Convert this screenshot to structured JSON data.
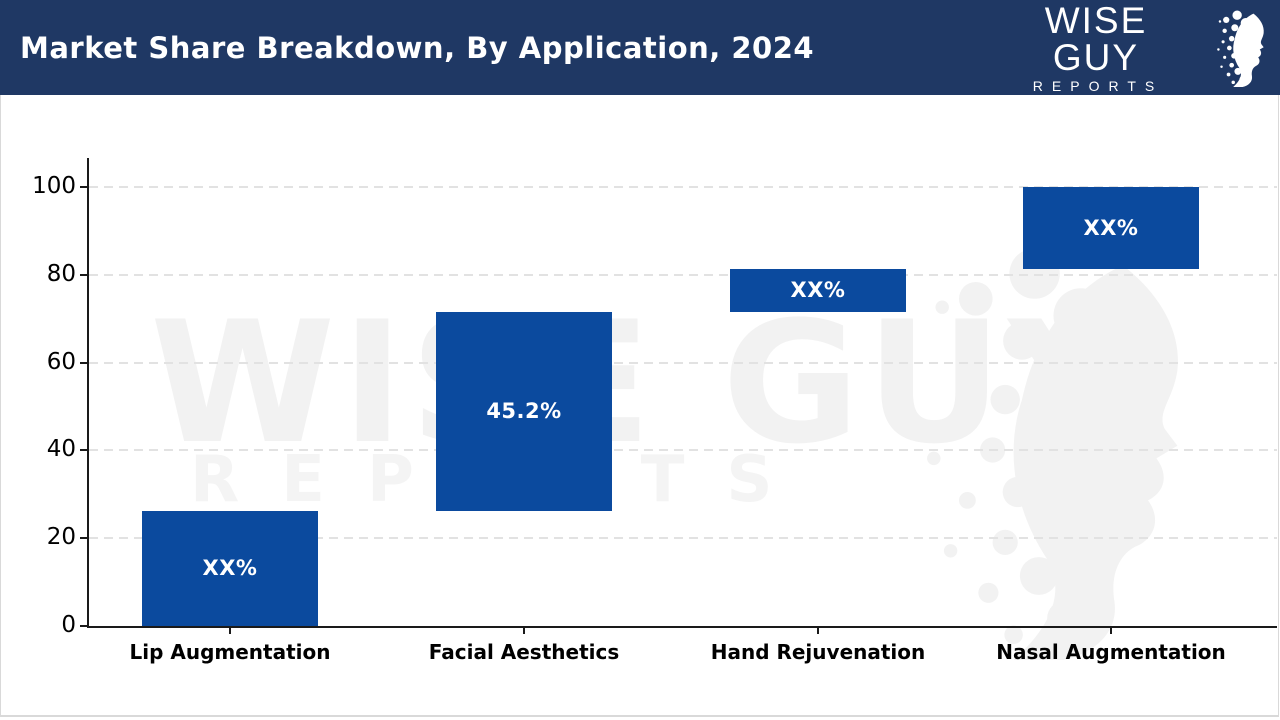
{
  "header": {
    "title": "Market Share Breakdown, By Application, 2024",
    "logo": {
      "line1": "WISE GUY",
      "line2": "REPORTS"
    }
  },
  "watermark": {
    "line1": "WISE GUY",
    "line2": "REPORTS"
  },
  "chart_data": {
    "type": "bar",
    "subtype": "floating-waterfall",
    "title": "Market Share Breakdown, By Application, 2024",
    "categories": [
      "Lip Augmentation",
      "Facial Aesthetics",
      "Hand Rejuvenation",
      "Nasal Augmentation"
    ],
    "segments": [
      {
        "category": "Lip Augmentation",
        "start": 0,
        "end": 26.3,
        "label": "XX%"
      },
      {
        "category": "Facial Aesthetics",
        "start": 26.3,
        "end": 71.5,
        "label": "45.2%"
      },
      {
        "category": "Hand Rejuvenation",
        "start": 71.5,
        "end": 81.4,
        "label": "XX%"
      },
      {
        "category": "Nasal Augmentation",
        "start": 81.4,
        "end": 100,
        "label": "XX%"
      }
    ],
    "y_ticks": [
      0,
      20,
      40,
      60,
      80,
      100
    ],
    "ylim": [
      0,
      106
    ],
    "xlabel": "",
    "ylabel": "",
    "grid": "horizontal-dashed",
    "legend": "none",
    "theme": {
      "bar_color": "#0b4a9e",
      "bar_label_color": "#ffffff",
      "header_bg": "#1f3864",
      "grid_color": "#e2e2e2",
      "axis_color": "#1a1a1a",
      "watermark_color": "#f2f2f2"
    }
  }
}
